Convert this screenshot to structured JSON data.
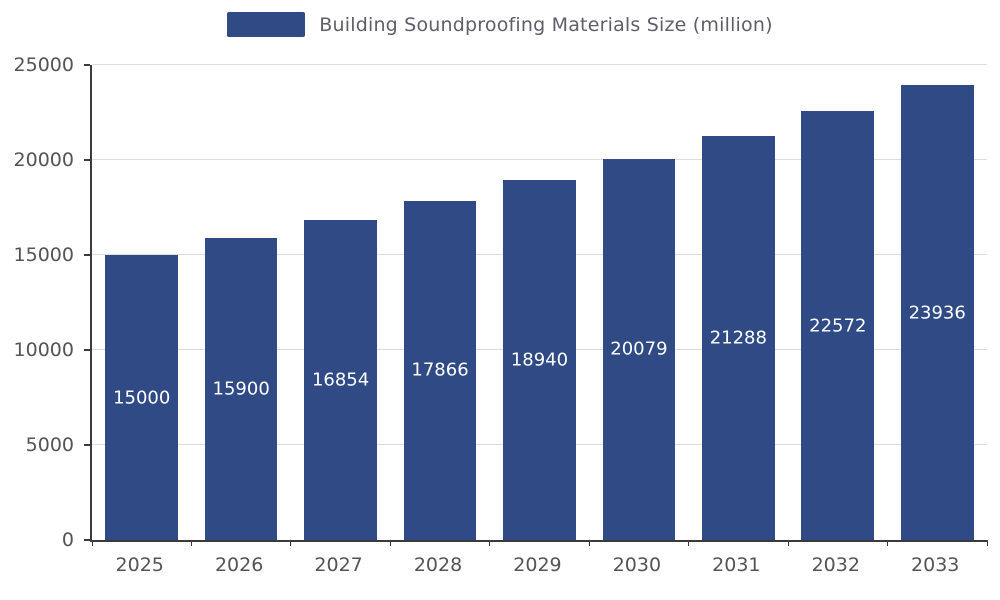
{
  "chart_data": {
    "type": "bar",
    "title": "Building Soundproofing Materials Size (million)",
    "categories": [
      "2025",
      "2026",
      "2027",
      "2028",
      "2029",
      "2030",
      "2031",
      "2032",
      "2033"
    ],
    "values": [
      15000,
      15900,
      16854,
      17866,
      18940,
      20079,
      21288,
      22572,
      23936
    ],
    "xlabel": "",
    "ylabel": "",
    "ylim": [
      0,
      25000
    ],
    "yticks": [
      0,
      5000,
      10000,
      15000,
      20000,
      25000
    ],
    "grid": true,
    "legend_position": "top",
    "bar_color": "#2f4a85",
    "value_label_color": "#ffffff",
    "axis_color": "#3a3a3a",
    "tick_label_color": "#545454",
    "gridline_color": "#dcdcdc",
    "background_color": "#ffffff"
  }
}
